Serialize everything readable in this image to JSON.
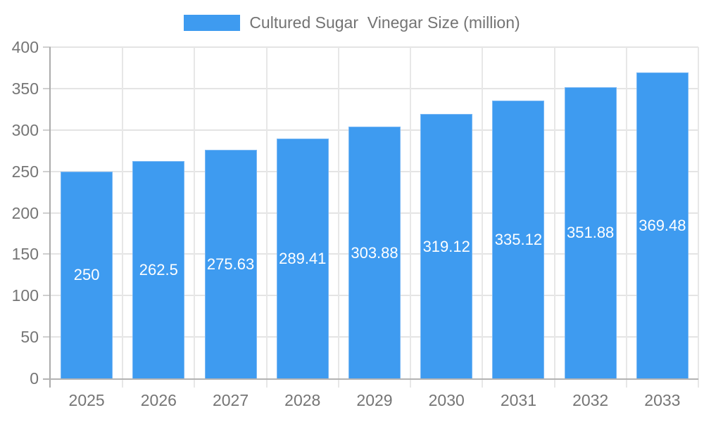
{
  "legend": {
    "label": "Cultured Sugar  Vinegar Size (million)",
    "swatch_color": "#3e9bf0"
  },
  "chart_data": {
    "type": "bar",
    "title": "Cultured Sugar  Vinegar Size (million)",
    "categories": [
      "2025",
      "2026",
      "2027",
      "2028",
      "2029",
      "2030",
      "2031",
      "2032",
      "2033"
    ],
    "series": [
      {
        "name": "Cultured Sugar  Vinegar Size (million)",
        "values": [
          250,
          262.5,
          275.63,
          289.41,
          303.88,
          319.12,
          335.12,
          351.88,
          369.48
        ],
        "value_labels": [
          "250",
          "262.5",
          "275.63",
          "289.41",
          "303.88",
          "319.12",
          "335.12",
          "351.88",
          "369.48"
        ]
      }
    ],
    "xlabel": "",
    "ylabel": "",
    "ylim": [
      0,
      400
    ],
    "yticks": [
      0,
      50,
      100,
      150,
      200,
      250,
      300,
      350,
      400
    ],
    "grid": true,
    "legend_position": "top",
    "bar_color": "#3e9bf0",
    "bar_border_color": "#7ab8f4",
    "data_label_color": "#ffffff",
    "axis_color": "#b0b0b0",
    "gridline_color": "#e5e5e5",
    "text_color": "#757575"
  }
}
